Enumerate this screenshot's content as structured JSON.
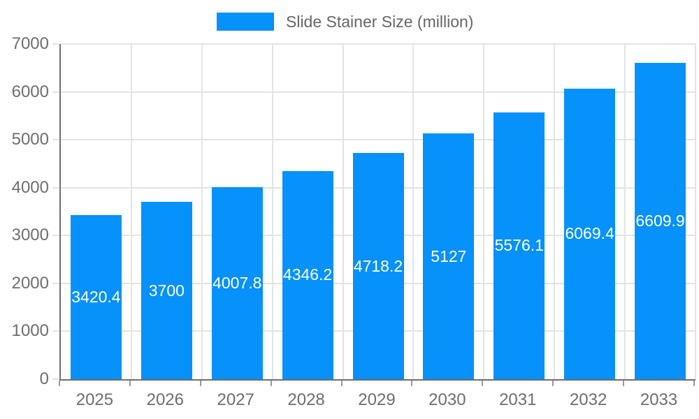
{
  "chart_data": {
    "type": "bar",
    "title": "",
    "legend": "Slide Stainer Size (million)",
    "legend_position": "top-center",
    "categories": [
      "2025",
      "2026",
      "2027",
      "2028",
      "2029",
      "2030",
      "2031",
      "2032",
      "2033"
    ],
    "series": [
      {
        "name": "Slide Stainer Size (million)",
        "values": [
          3420.4,
          3700,
          4007.8,
          4346.2,
          4718.2,
          5127,
          5576.1,
          6069.4,
          6609.9
        ]
      }
    ],
    "values": [
      3420.4,
      3700,
      4007.8,
      4346.2,
      4718.2,
      5127,
      5576.1,
      6069.4,
      6609.9
    ],
    "bar_value_labels": [
      "3420.4",
      "3700",
      "4007.8",
      "4346.2",
      "4718.2",
      "5127",
      "5576.1",
      "6069.4",
      "6609.9"
    ],
    "xlabel": "",
    "ylabel": "",
    "ylim": [
      0,
      7000
    ],
    "yticks": [
      0,
      1000,
      2000,
      3000,
      4000,
      5000,
      6000,
      7000
    ],
    "grid": true,
    "value_labels_inside_bars": true,
    "colors": {
      "bar": "#0691fb",
      "grid": "#e3e3e3",
      "axis": "#6e6e6e",
      "tick_mark": "#999999",
      "tick_text": "#6e6e6e",
      "legend_text": "#666666",
      "value_text": "#ffffff",
      "background": "#ffffff"
    }
  }
}
